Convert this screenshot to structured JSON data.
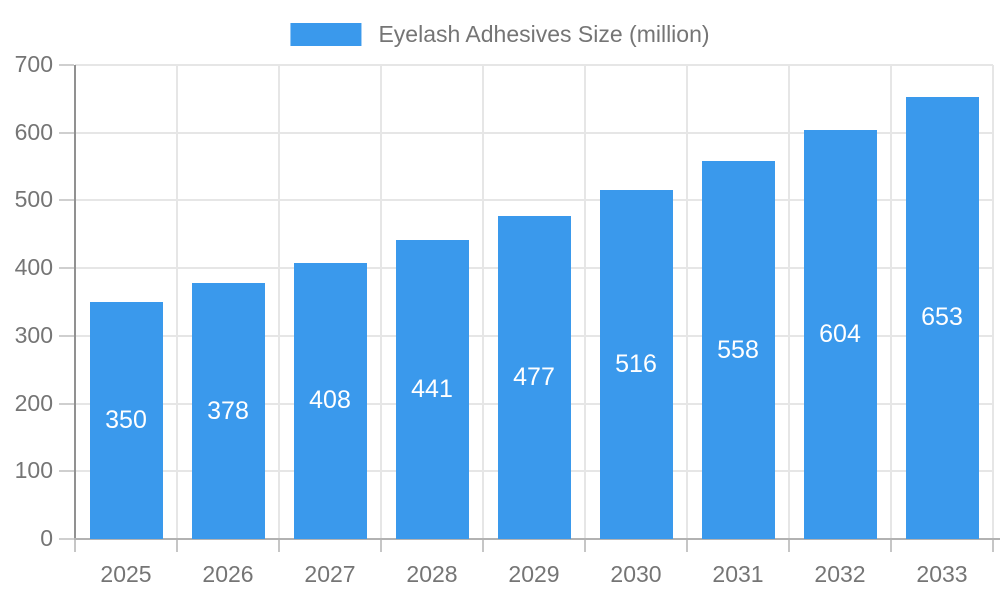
{
  "legend": {
    "label": "Eyelash Adhesives Size (million)"
  },
  "colors": {
    "bar": "#3A99EC",
    "bar_value_label": "#ffffff",
    "axis_label_text": "#757575",
    "gridline": "#e6e6e6",
    "y_axis_line": "#919191",
    "x_axis_line": "#b2b2b2"
  },
  "chart_data": {
    "type": "bar",
    "title": "Eyelash Adhesives Size (million)",
    "series_name": "Eyelash Adhesives Size (million)",
    "categories": [
      "2025",
      "2026",
      "2027",
      "2028",
      "2029",
      "2030",
      "2031",
      "2032",
      "2033"
    ],
    "values": [
      350,
      378,
      408,
      441,
      477,
      516,
      558,
      604,
      653
    ],
    "value_labels": [
      "350",
      "378",
      "408",
      "441",
      "477",
      "516",
      "558",
      "604",
      "653"
    ],
    "xlabel": "",
    "ylabel": "",
    "ylim": [
      0,
      700
    ],
    "yticks": [
      0,
      100,
      200,
      300,
      400,
      500,
      600,
      700
    ],
    "grid": true,
    "legend_position": "top-center",
    "value_label_position": "inside-center"
  }
}
